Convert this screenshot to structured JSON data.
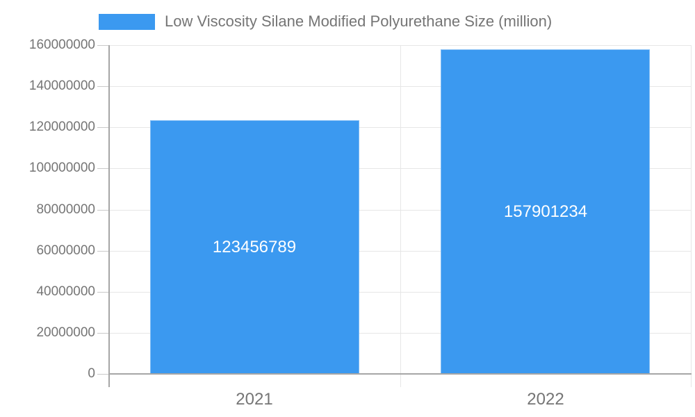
{
  "chart_data": {
    "type": "bar",
    "title": "Low Viscosity Silane Modified Polyurethane Size (million)",
    "categories": [
      "2021",
      "2022"
    ],
    "series": [
      {
        "name": "Low Viscosity Silane Modified Polyurethane Size (million)",
        "values": [
          123456789,
          157901234
        ]
      }
    ],
    "bar_labels": [
      "123456789",
      "157901234"
    ],
    "yticks": [
      0,
      20000000,
      40000000,
      60000000,
      80000000,
      100000000,
      120000000,
      140000000,
      160000000
    ],
    "ytick_labels": [
      "0",
      "20000000",
      "40000000",
      "60000000",
      "80000000",
      "100000000",
      "120000000",
      "140000000",
      "160000000"
    ],
    "ylim": [
      0,
      160000000
    ],
    "xlabel": "",
    "ylabel": "",
    "grid": true,
    "legend_position": "top",
    "colors": {
      "bar": "#3B99F0",
      "bar_label_text": "#FFFFFF",
      "axis_text": "#757575",
      "gridline": "#E6E6E6",
      "axis_line": "#A6A6A6",
      "tick_mark": "#C9C9C9"
    }
  }
}
